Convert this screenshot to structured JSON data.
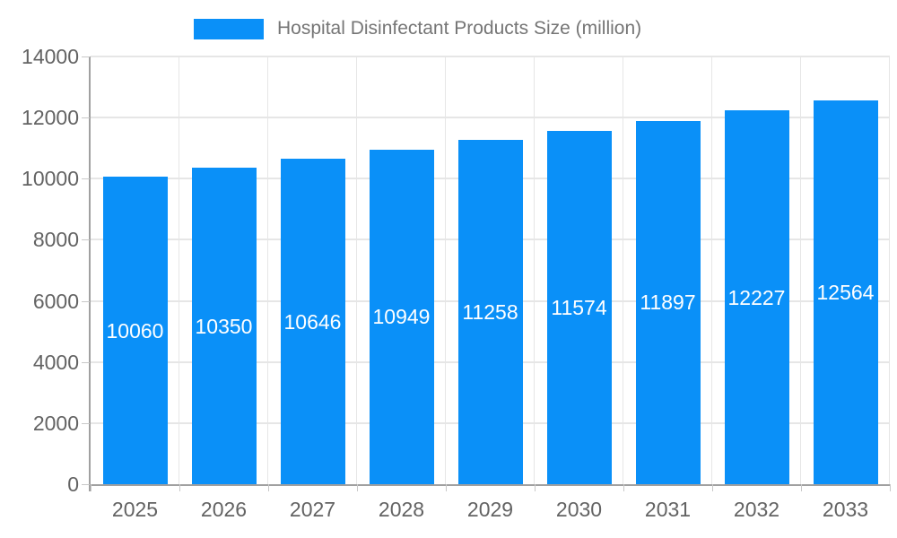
{
  "chart_data": {
    "type": "bar",
    "title": "Hospital Disinfectant Products Size (million)",
    "categories": [
      "2025",
      "2026",
      "2027",
      "2028",
      "2029",
      "2030",
      "2031",
      "2032",
      "2033"
    ],
    "values": [
      10060,
      10350,
      10646,
      10949,
      11258,
      11574,
      11897,
      12227,
      12564
    ],
    "xlabel": "",
    "ylabel": "",
    "ylim": [
      0,
      14000
    ],
    "ytick_step": 2000,
    "ytick_labels": [
      "0",
      "2000",
      "4000",
      "6000",
      "8000",
      "10000",
      "12000",
      "14000"
    ],
    "grid": true,
    "legend_position": "top",
    "value_labels": "inside-center",
    "colors": {
      "bar": "#0a90f8",
      "value_label": "#ffffff",
      "axis_label": "#636363",
      "legend_text": "#757575",
      "gridline": "#e6e6e6",
      "axis_line": "#a0a0a0",
      "tick_mark": "#c8c8c8",
      "background": "#ffffff"
    }
  }
}
